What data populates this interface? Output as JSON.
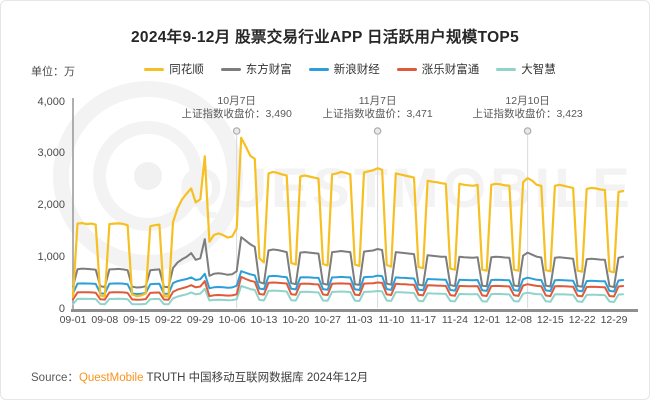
{
  "title": "2024年9-12月 股票交易行业APP 日活跃用户规模TOP5",
  "unit_label": "单位：万",
  "watermark": "QUESTMOBILE",
  "source": {
    "prefix": "Source：",
    "brand": "QuestMobile",
    "rest": " TRUTH 中国移动互联网数据库 2024年12月"
  },
  "chart_data": {
    "type": "line",
    "title": "2024年9-12月 股票交易行业APP 日活跃用户规模TOP5",
    "ylabel_unit": "万",
    "ylim": [
      0,
      4000
    ],
    "grid": false,
    "legend_position": "top",
    "y_ticks": [
      {
        "label": "0",
        "value": 0
      },
      {
        "label": "1,000",
        "value": 1000
      },
      {
        "label": "2,000",
        "value": 2000
      },
      {
        "label": "3,000",
        "value": 3000
      },
      {
        "label": "4,000",
        "value": 4000
      }
    ],
    "x_tick_labels": [
      "09-01",
      "09-08",
      "09-15",
      "09-22",
      "09-29",
      "10-06",
      "10-13",
      "10-20",
      "10-27",
      "11-03",
      "11-10",
      "11-17",
      "11-24",
      "12-01",
      "12-08",
      "12-15",
      "12-22",
      "12-29"
    ],
    "x_tick_day_indices": [
      0,
      7,
      14,
      21,
      28,
      35,
      42,
      49,
      56,
      63,
      70,
      77,
      84,
      91,
      98,
      105,
      112,
      119
    ],
    "annotations": [
      {
        "day_index": 36,
        "line1": "10月7日",
        "line2": "上证指数收盘价：3,490"
      },
      {
        "day_index": 67,
        "line1": "11月7日",
        "line2": "上证指数收盘价：3,471"
      },
      {
        "day_index": 100,
        "line1": "12月10日",
        "line2": "上证指数收盘价：3,423"
      }
    ],
    "series": [
      {
        "name": "同花顺",
        "color": "#F6C022",
        "values": [
          240,
          1650,
          1660,
          1640,
          1650,
          1630,
          260,
          240,
          1640,
          1650,
          1655,
          1645,
          1620,
          280,
          250,
          260,
          300,
          1600,
          1620,
          1630,
          250,
          240,
          1680,
          1950,
          2120,
          2230,
          2330,
          2060,
          2120,
          2950,
          1300,
          1430,
          1460,
          1430,
          1380,
          1400,
          1560,
          3310,
          3140,
          2960,
          2900,
          980,
          900,
          2620,
          2650,
          2630,
          2600,
          2580,
          890,
          860,
          2560,
          2580,
          2560,
          2540,
          2520,
          870,
          840,
          2600,
          2620,
          2650,
          2630,
          2600,
          860,
          830,
          2640,
          2660,
          2680,
          2720,
          2690,
          850,
          820,
          2620,
          2600,
          2580,
          2560,
          2540,
          810,
          790,
          2480,
          2460,
          2450,
          2430,
          2420,
          780,
          760,
          2420,
          2400,
          2390,
          2380,
          2400,
          760,
          740,
          2400,
          2420,
          2410,
          2390,
          2380,
          760,
          740,
          2450,
          2530,
          2480,
          2400,
          2380,
          750,
          730,
          2380,
          2400,
          2380,
          2360,
          2340,
          740,
          720,
          2320,
          2340,
          2330,
          2310,
          2300,
          730,
          710,
          2260,
          2280
        ]
      },
      {
        "name": "东方财富",
        "color": "#7D7D7D",
        "values": [
          430,
          770,
          780,
          775,
          770,
          760,
          440,
          425,
          765,
          770,
          775,
          765,
          750,
          430,
          415,
          420,
          440,
          750,
          760,
          765,
          430,
          420,
          790,
          900,
          960,
          1010,
          1080,
          950,
          980,
          1350,
          640,
          680,
          690,
          680,
          660,
          670,
          730,
          1390,
          1320,
          1250,
          1200,
          520,
          490,
          1130,
          1150,
          1140,
          1120,
          1100,
          500,
          480,
          1090,
          1100,
          1090,
          1080,
          1070,
          490,
          470,
          1100,
          1110,
          1120,
          1110,
          1100,
          480,
          465,
          1110,
          1120,
          1130,
          1160,
          1140,
          490,
          470,
          1100,
          1090,
          1080,
          1070,
          1060,
          470,
          455,
          1040,
          1030,
          1020,
          1010,
          1010,
          460,
          445,
          1010,
          1000,
          995,
          990,
          1000,
          450,
          440,
          1000,
          1010,
          1005,
          995,
          990,
          455,
          440,
          1030,
          1090,
          1050,
          1010,
          995,
          450,
          435,
          990,
          1000,
          990,
          980,
          970,
          445,
          430,
          960,
          970,
          965,
          955,
          950,
          440,
          425,
          990,
          1010
        ]
      },
      {
        "name": "新浪财经",
        "color": "#2D9FD8",
        "values": [
          300,
          490,
          495,
          492,
          490,
          485,
          305,
          295,
          488,
          492,
          494,
          490,
          480,
          300,
          290,
          295,
          310,
          480,
          485,
          488,
          298,
          292,
          500,
          540,
          560,
          580,
          610,
          560,
          575,
          680,
          400,
          420,
          425,
          420,
          410,
          415,
          450,
          730,
          700,
          670,
          650,
          395,
          380,
          630,
          640,
          635,
          625,
          615,
          390,
          378,
          610,
          615,
          610,
          605,
          600,
          385,
          372,
          610,
          615,
          620,
          615,
          610,
          380,
          368,
          615,
          620,
          625,
          645,
          635,
          385,
          370,
          610,
          605,
          600,
          595,
          590,
          375,
          362,
          580,
          575,
          572,
          568,
          565,
          368,
          355,
          565,
          560,
          558,
          555,
          560,
          362,
          350,
          560,
          565,
          562,
          558,
          555,
          365,
          352,
          575,
          605,
          585,
          565,
          558,
          360,
          348,
          555,
          560,
          555,
          550,
          545,
          355,
          342,
          540,
          545,
          542,
          538,
          535,
          350,
          338,
          550,
          560
        ]
      },
      {
        "name": "涨乐财富通",
        "color": "#DE5A3A",
        "values": [
          185,
          320,
          325,
          322,
          320,
          315,
          188,
          182,
          318,
          322,
          324,
          320,
          312,
          185,
          178,
          182,
          192,
          312,
          316,
          318,
          184,
          180,
          330,
          375,
          400,
          425,
          460,
          420,
          435,
          540,
          250,
          265,
          270,
          265,
          258,
          262,
          285,
          620,
          580,
          545,
          525,
          290,
          278,
          505,
          512,
          508,
          500,
          492,
          285,
          275,
          485,
          490,
          486,
          480,
          475,
          280,
          270,
          488,
          492,
          495,
          490,
          486,
          278,
          268,
          490,
          494,
          498,
          512,
          504,
          282,
          270,
          486,
          482,
          478,
          472,
          468,
          274,
          262,
          460,
          456,
          452,
          448,
          446,
          268,
          256,
          446,
          442,
          440,
          438,
          442,
          262,
          252,
          442,
          446,
          444,
          440,
          436,
          265,
          254,
          455,
          480,
          462,
          446,
          440,
          260,
          250,
          438,
          442,
          438,
          434,
          430,
          256,
          246,
          426,
          430,
          428,
          424,
          420,
          252,
          242,
          435,
          445
        ]
      },
      {
        "name": "大智慧",
        "color": "#90D3CA",
        "values": [
          95,
          195,
          198,
          196,
          195,
          192,
          96,
          92,
          194,
          196,
          198,
          195,
          190,
          95,
          90,
          92,
          98,
          190,
          193,
          195,
          94,
          91,
          205,
          240,
          262,
          285,
          320,
          285,
          298,
          390,
          165,
          175,
          180,
          175,
          170,
          172,
          190,
          445,
          415,
          385,
          370,
          175,
          165,
          350,
          356,
          352,
          345,
          338,
          170,
          162,
          330,
          334,
          330,
          325,
          320,
          165,
          158,
          330,
          334,
          338,
          332,
          328,
          162,
          155,
          330,
          334,
          338,
          348,
          340,
          164,
          156,
          326,
          322,
          318,
          314,
          310,
          158,
          150,
          305,
          300,
          297,
          294,
          292,
          154,
          146,
          292,
          288,
          286,
          284,
          288,
          150,
          143,
          288,
          292,
          290,
          286,
          283,
          152,
          144,
          296,
          315,
          300,
          288,
          284,
          148,
          140,
          282,
          286,
          282,
          278,
          275,
          146,
          138,
          272,
          276,
          274,
          270,
          268,
          144,
          136,
          278,
          285
        ]
      }
    ]
  }
}
